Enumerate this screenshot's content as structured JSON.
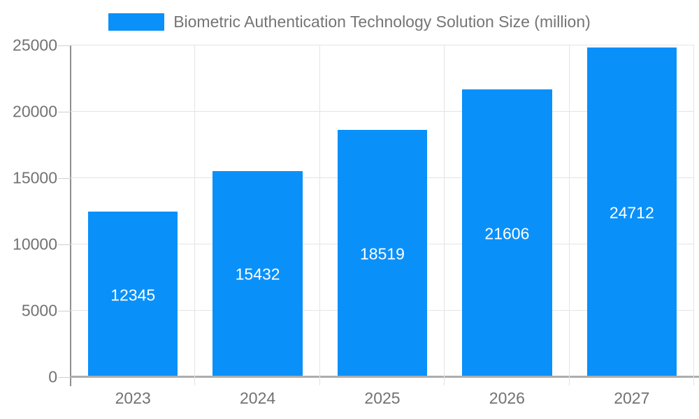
{
  "chart_data": {
    "type": "bar",
    "title": "Biometric Authentication Technology Solution Size (million)",
    "legend": [
      "Biometric Authentication Technology Solution Size (million)"
    ],
    "legend_position": "top-center",
    "categories": [
      "2023",
      "2024",
      "2025",
      "2026",
      "2027"
    ],
    "series": [
      {
        "name": "Biometric Authentication Technology Solution Size (million)",
        "values": [
          12345,
          15432,
          18519,
          21606,
          24712
        ]
      }
    ],
    "value_labels": [
      "12345",
      "15432",
      "18519",
      "21606",
      "24712"
    ],
    "xlabel": "",
    "ylabel": "",
    "ylim": [
      0,
      25000
    ],
    "yticks": [
      0,
      5000,
      10000,
      15000,
      20000,
      25000
    ],
    "ytick_labels": [
      "0",
      "5000",
      "10000",
      "15000",
      "20000",
      "25000"
    ],
    "grid": true,
    "bar_color": "#0a90f9",
    "value_label_color": "#ffffff",
    "text_color": "#727272",
    "grid_color": "#e4e4e4",
    "background_color": "#ffffff"
  }
}
